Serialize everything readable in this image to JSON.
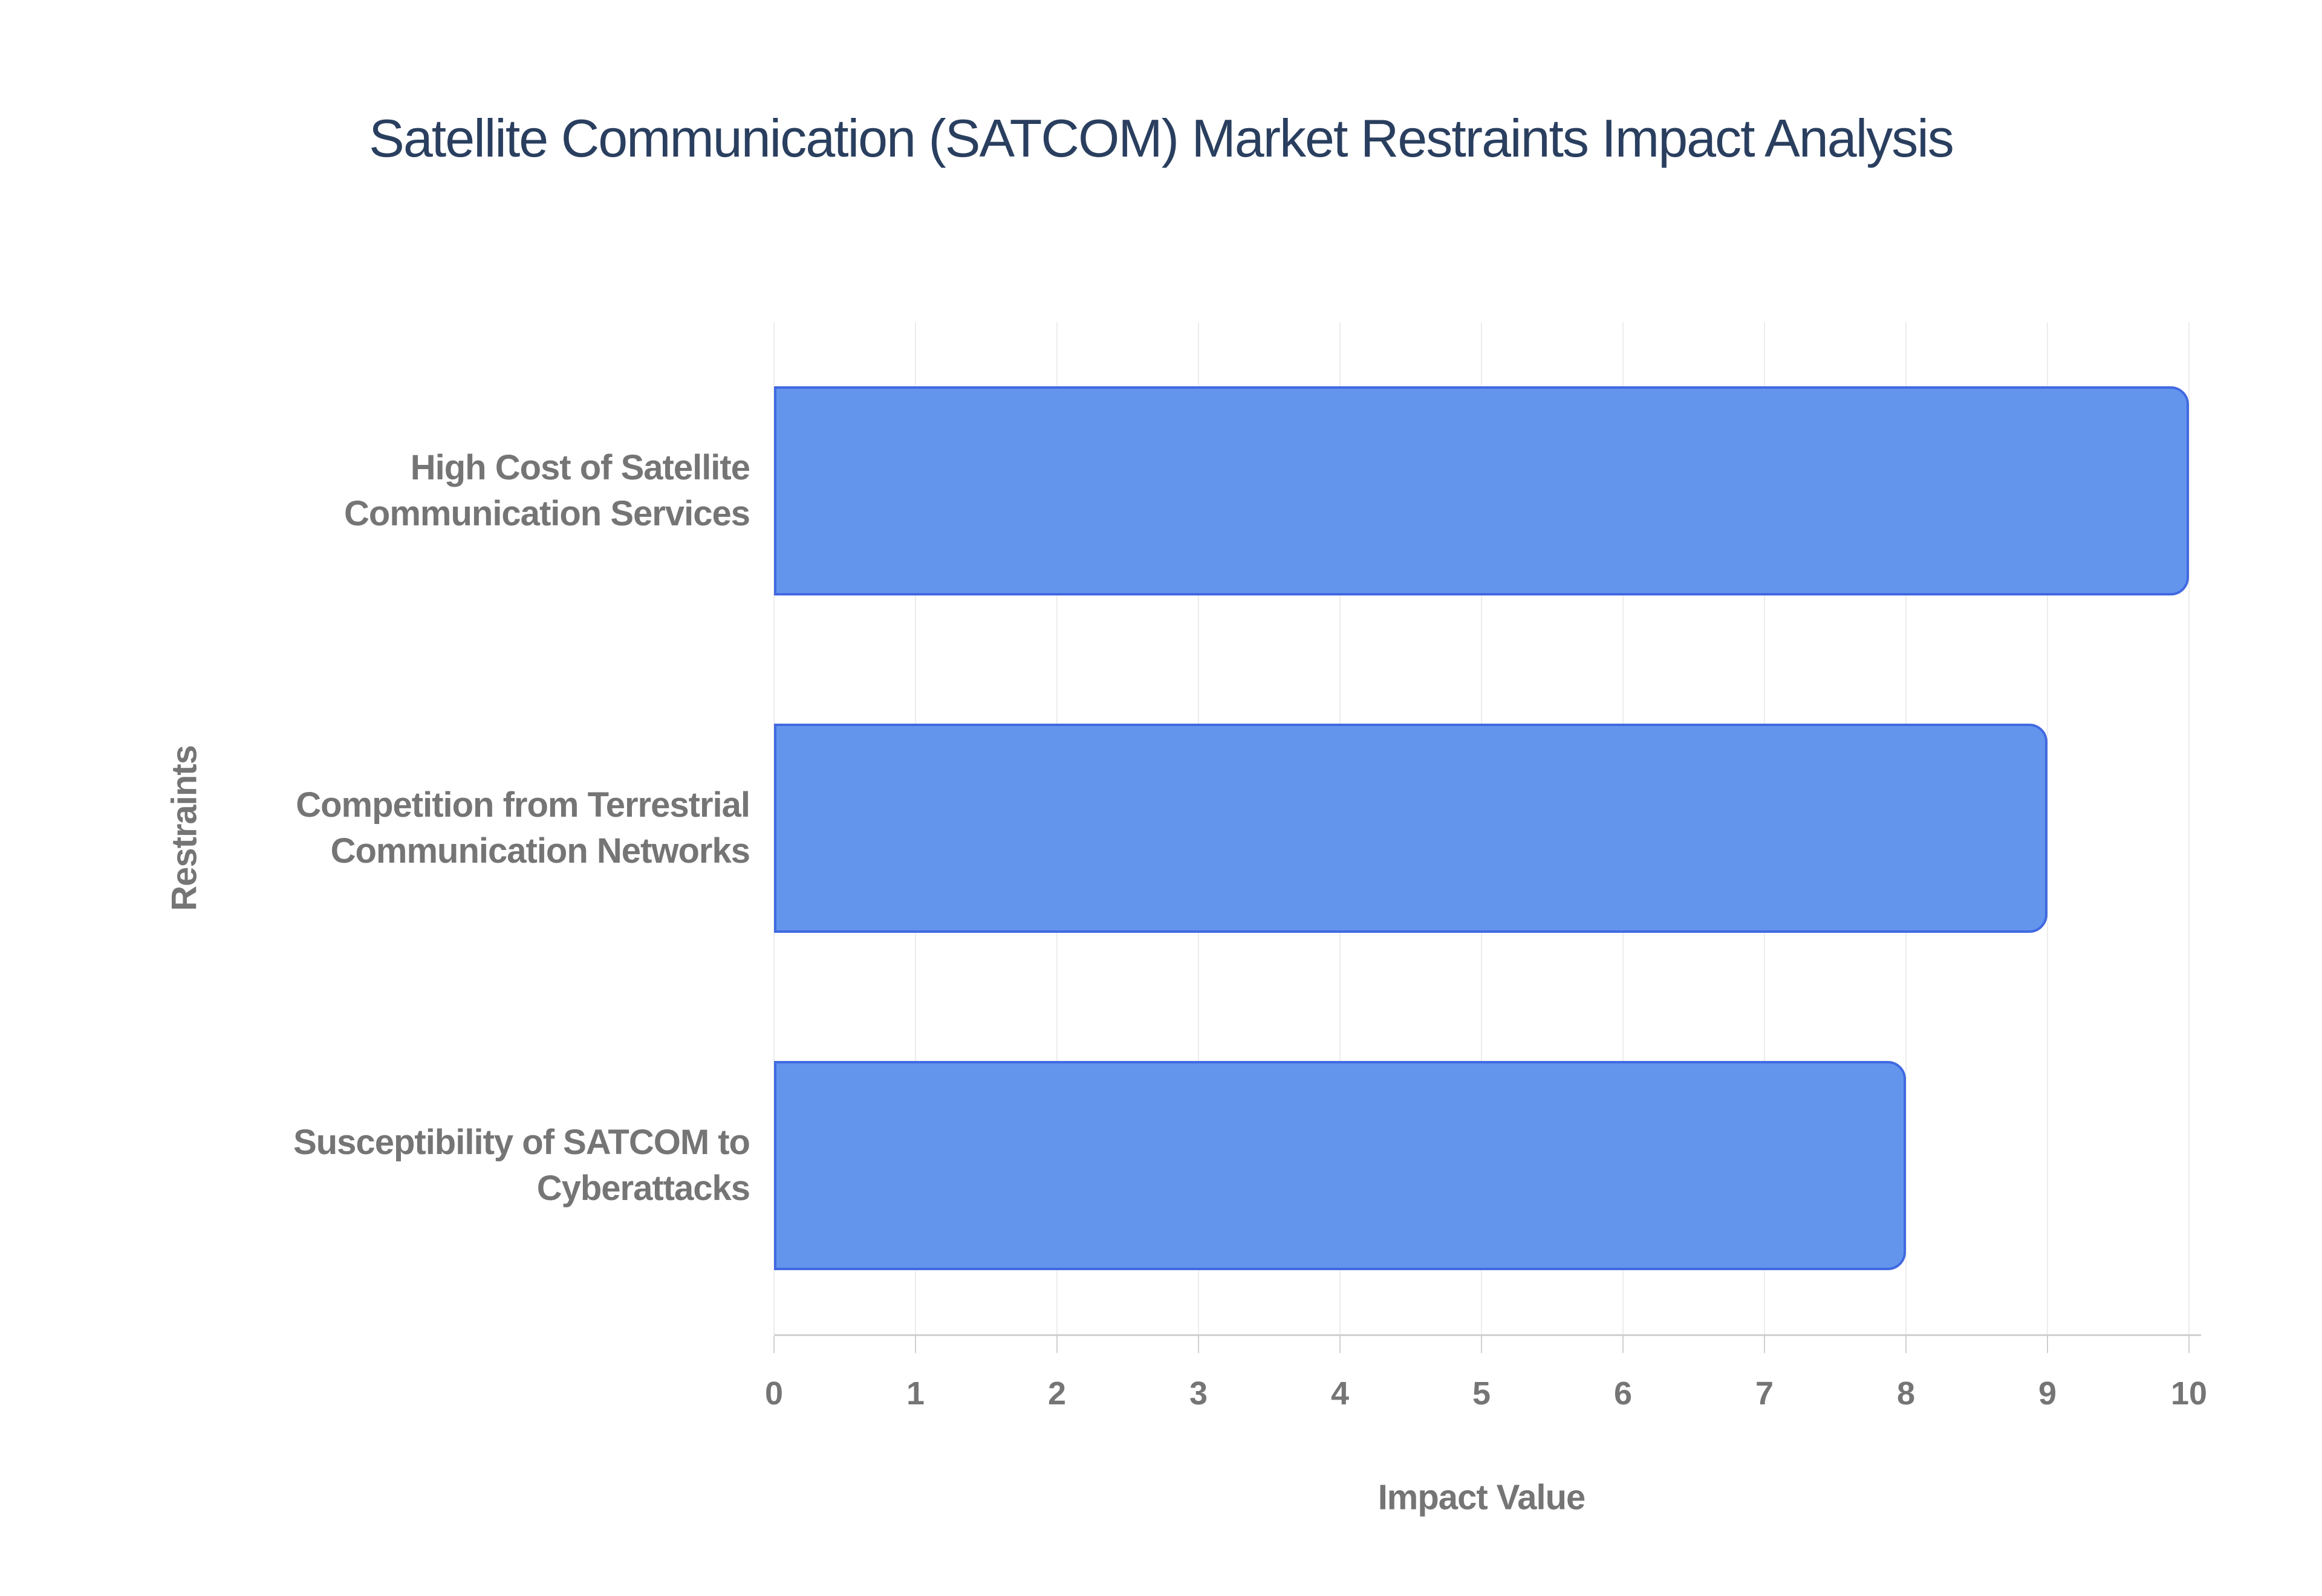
{
  "chart_data": {
    "type": "bar",
    "orientation": "horizontal",
    "title": "Satellite Communication (SATCOM) Market Restraints Impact Analysis",
    "categories": [
      "High Cost of Satellite Communication Services",
      "Competition from Terrestrial Communication Networks",
      "Susceptibility of SATCOM to Cyberattacks"
    ],
    "values": [
      10,
      9,
      8
    ],
    "xlabel": "Impact Value",
    "ylabel": "Restraints",
    "xlim": [
      0,
      10
    ],
    "xticks": [
      0,
      1,
      2,
      3,
      4,
      5,
      6,
      7,
      8,
      9,
      10
    ],
    "grid": true,
    "legend": false,
    "colors": {
      "bar_fill": "#6495ED",
      "bar_border": "#4169E1",
      "title_text": "#2a3f5f",
      "label_text": "#757575",
      "gridline": "#ececec",
      "axis_line": "#d0d0d0",
      "background": "#ffffff"
    }
  }
}
